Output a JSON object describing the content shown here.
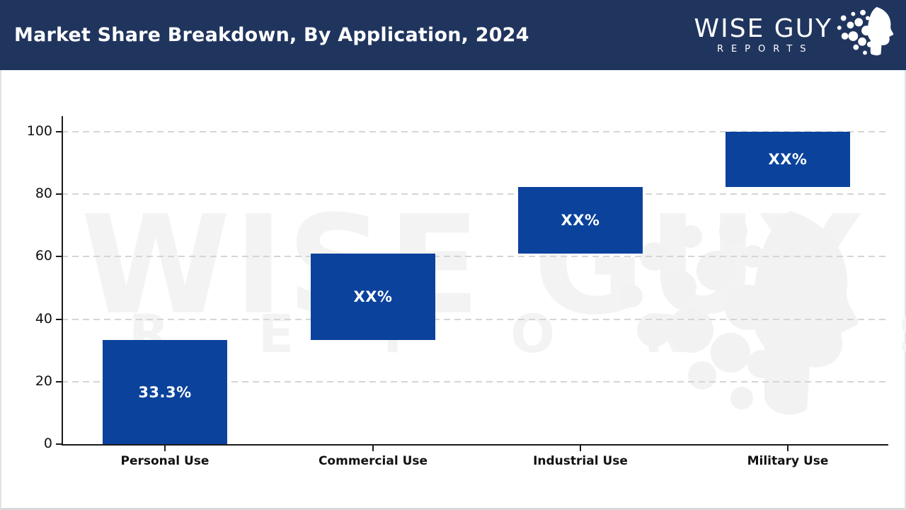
{
  "header": {
    "title": "Market Share Breakdown, By Application, 2024",
    "logo": {
      "line1": "WISE GUY",
      "line2": "REPORTS"
    }
  },
  "watermark": {
    "line1": "WISE GUY",
    "line2": "REPORTS"
  },
  "colors": {
    "header_bg": "#20355e",
    "bar": "#0b429c",
    "bar_label": "#ffffff",
    "grid": "#d5d5d5",
    "axis": "#1a1a1a",
    "watermark": "#f3f3f3"
  },
  "chart_data": {
    "type": "bar",
    "subtype": "waterfall",
    "title": "Market Share Breakdown, By Application, 2024",
    "categories": [
      "Personal Use",
      "Commercial Use",
      "Industrial Use",
      "Military Use"
    ],
    "segments": [
      {
        "category": "Personal Use",
        "start": 0,
        "end": 33.3,
        "label": "33.3%"
      },
      {
        "category": "Commercial Use",
        "start": 33.3,
        "end": 61.1,
        "label": "XX%"
      },
      {
        "category": "Industrial Use",
        "start": 61.1,
        "end": 82.4,
        "label": "XX%"
      },
      {
        "category": "Military Use",
        "start": 82.4,
        "end": 100,
        "label": "XX%"
      }
    ],
    "yticks": [
      0,
      20,
      40,
      60,
      80,
      100
    ],
    "ylim": [
      0,
      105
    ],
    "xlabel": "",
    "ylabel": "",
    "grid": "horizontal-dashed",
    "legend": "none"
  }
}
